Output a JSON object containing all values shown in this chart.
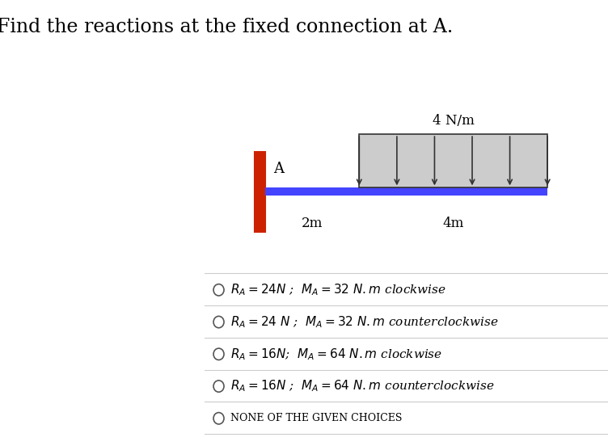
{
  "title": "Find the reactions at the fixed connection at A.",
  "title_fontsize": 17,
  "bg_color": "#ffffff",
  "beam_color": "#4444ff",
  "wall_color": "#cc2200",
  "load_box_color": "#cccccc",
  "load_box_edge": "#333333",
  "arrow_color": "#333333",
  "label_4nm": "4 N/m",
  "label_2m": "2m",
  "label_4m": "4m",
  "label_A": "A",
  "choices": [
    "$R_A = 24N$ ;  $M_A = 32\\ N.m$ clockwise",
    "$R_A = 24\\ N$ ;  $M_A = 32\\ N.m$ counterclockwise",
    "$R_A = 16N$;  $M_A = 64\\ N.m$ clockwise",
    "$R_A = 16N$ ;  $M_A = 64\\ N.m$ counterclockwise",
    "NONE OF THE GIVEN CHOICES"
  ],
  "choice_italic": [
    true,
    true,
    true,
    true,
    false
  ]
}
